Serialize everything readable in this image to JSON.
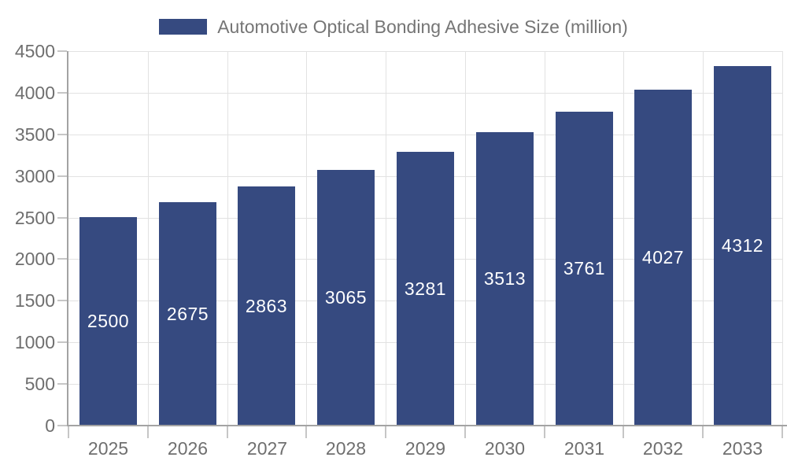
{
  "legend": {
    "label": "Automotive Optical Bonding Adhesive Size (million)"
  },
  "chart_data": {
    "type": "bar",
    "title": "Automotive Optical Bonding Adhesive Size (million)",
    "categories": [
      "2025",
      "2026",
      "2027",
      "2028",
      "2029",
      "2030",
      "2031",
      "2032",
      "2033"
    ],
    "values": [
      2500,
      2675,
      2863,
      3065,
      3281,
      3513,
      3761,
      4027,
      4312
    ],
    "series_name": "Automotive Optical Bonding Adhesive Size (million)",
    "xlabel": "",
    "ylabel": "",
    "ylim": [
      0,
      4500
    ],
    "yticks": [
      0,
      500,
      1000,
      1500,
      2000,
      2500,
      3000,
      3500,
      4000,
      4500
    ],
    "grid": true,
    "legend_position": "top",
    "bar_value_labels": true,
    "colors": {
      "bar": "#364a80",
      "grid": "#e2e2e2",
      "axis": "#a3a3a3",
      "tick": "#c6c6c6",
      "axis_text": "#6f6f6f",
      "legend_text": "#757575",
      "value_label": "#ffffff",
      "background": "#ffffff"
    }
  }
}
